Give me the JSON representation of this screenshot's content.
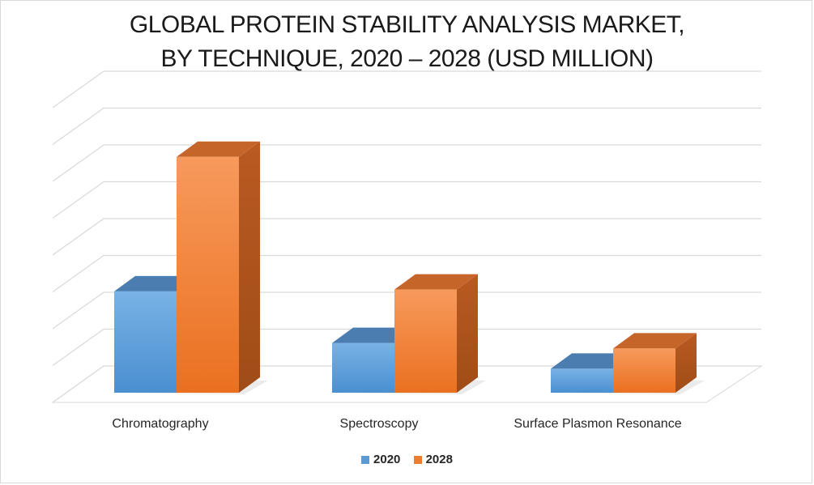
{
  "chart_data": {
    "type": "bar",
    "title_lines": [
      "GLOBAL PROTEIN STABILITY ANALYSIS MARKET,",
      "BY TECHNIQUE, 2020 – 2028 (USD MILLION)"
    ],
    "categories": [
      "Chromatography",
      "Spectroscopy",
      "Surface Plasmon Resonance"
    ],
    "series": [
      {
        "name": "2020",
        "values": [
          2.75,
          1.35,
          0.65
        ],
        "color": "#5b9bd5"
      },
      {
        "name": "2028",
        "values": [
          6.4,
          2.8,
          1.2
        ],
        "color": "#ed7d31"
      }
    ],
    "ylim": [
      0,
      8
    ],
    "grid": true,
    "legend_position": "bottom",
    "three_d": true
  }
}
